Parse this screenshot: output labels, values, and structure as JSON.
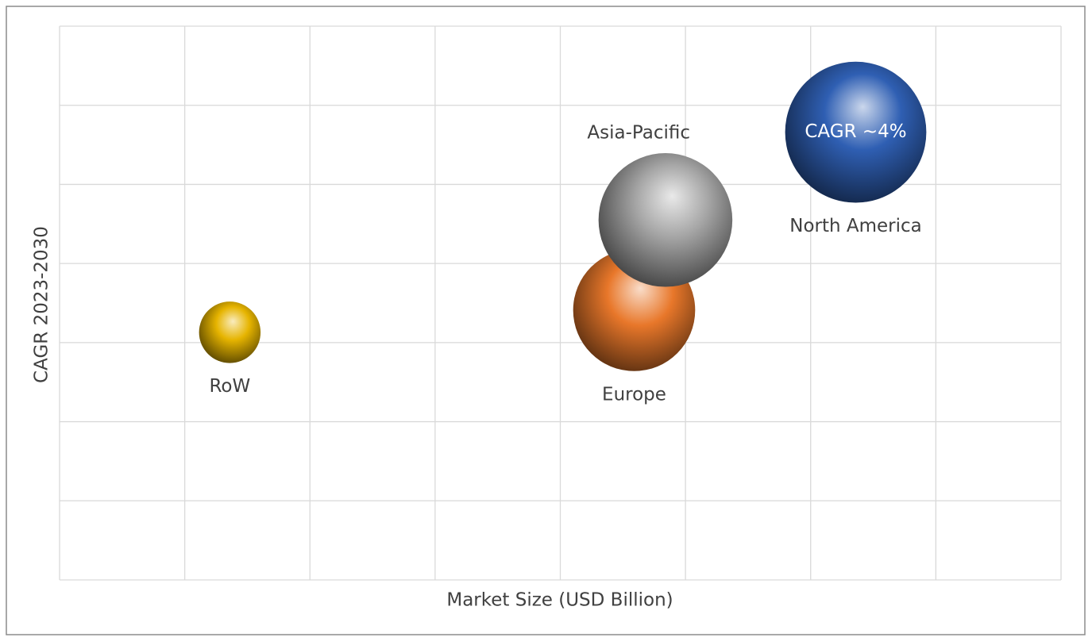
{
  "chart_data": {
    "type": "bubble",
    "x_label": "Market Size (USD Billion)",
    "y_label": "CAGR 2023-2030",
    "xlim": [
      0,
      8
    ],
    "ylim": [
      0,
      7
    ],
    "xticks": [
      0,
      1,
      2,
      3,
      4,
      5,
      6,
      7,
      8
    ],
    "yticks": [
      0,
      1,
      2,
      3,
      4,
      5,
      6,
      7
    ],
    "grid": true,
    "tick_labels": false,
    "points": [
      {
        "name": "RoW",
        "x": 1.36,
        "y": 3.13,
        "size": 15,
        "color": "#e6b400",
        "label_position": "below"
      },
      {
        "name": "Europe",
        "x": 4.59,
        "y": 3.41,
        "size": 59,
        "color": "#e8772a",
        "label_position": "below"
      },
      {
        "name": "Asia-Pacific",
        "x": 4.84,
        "y": 4.55,
        "size": 71,
        "color": "#a6a6a6",
        "label_position": "above-left"
      },
      {
        "name": "North America",
        "x": 6.36,
        "y": 5.66,
        "size": 79,
        "color": "#2f5fb3",
        "label_position": "below",
        "annotation": "CAGR ~4%"
      }
    ]
  }
}
